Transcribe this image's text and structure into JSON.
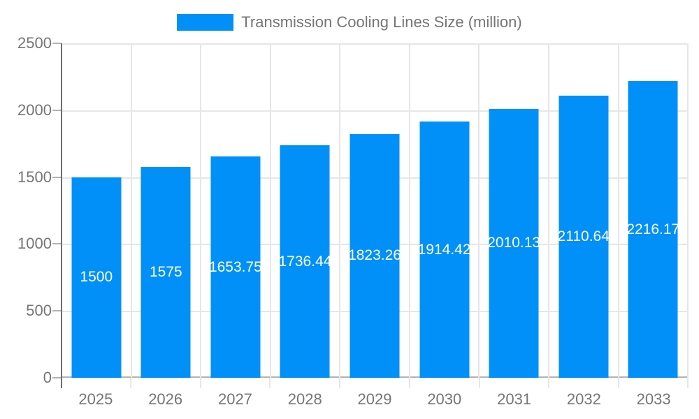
{
  "legend": {
    "label": "Transmission Cooling Lines Size (million)"
  },
  "chart_data": {
    "type": "bar",
    "title": "Transmission Cooling Lines Size (million)",
    "categories": [
      "2025",
      "2026",
      "2027",
      "2028",
      "2029",
      "2030",
      "2031",
      "2032",
      "2033"
    ],
    "values": [
      1500,
      1575,
      1653.75,
      1736.44,
      1823.26,
      1914.42,
      2010.13,
      2110.64,
      2216.17
    ],
    "value_labels": [
      "1500",
      "1575",
      "1653.75",
      "1736.44",
      "1823.26",
      "1914.42",
      "2010.13",
      "2110.64",
      "2216.17"
    ],
    "xlabel": "",
    "ylabel": "",
    "ylim": [
      0,
      2500
    ],
    "yticks": [
      0,
      500,
      1000,
      1500,
      2000,
      2500
    ],
    "ytick_labels": [
      "0",
      "500",
      "1000",
      "1500",
      "2000",
      "2500"
    ],
    "grid": true,
    "legend_position": "top",
    "colors": {
      "bar": "#0090f8",
      "bar_label": "#ffffff",
      "axis_text": "#757575",
      "grid_line": "#e6e6e6",
      "axis_line": "#6e6e6e",
      "zero_line": "#b3b3b3",
      "tick": "#b3b3b3",
      "background": "#ffffff"
    }
  }
}
